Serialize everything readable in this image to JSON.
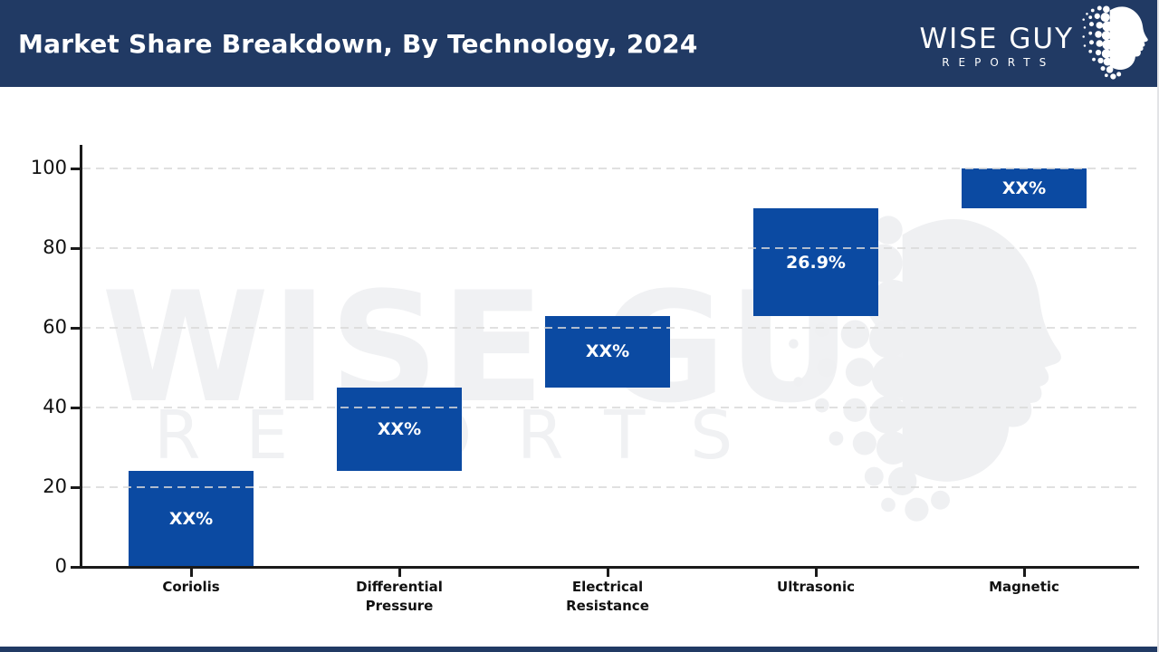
{
  "header": {
    "logo": {
      "wordmark": "WISE GUY",
      "subtext": "REPORTS"
    }
  },
  "watermark": {
    "wordmark": "WISE GUY",
    "subtext": "REPORTS"
  },
  "colors": {
    "header_bg": "#213a64",
    "footer_bg": "#213a64",
    "bar": "#0b4aa2",
    "bar_label": "#ffffff",
    "grid": "#d9d9d9",
    "axis": "#1a1a1a",
    "watermark": "#f0f1f3"
  },
  "chart_data": {
    "type": "bar",
    "subtype": "floating-waterfall",
    "title": "Market Share Breakdown, By Technology, 2024",
    "categories": [
      "Coriolis",
      "Differential Pressure",
      "Electrical Resistance",
      "Ultrasonic",
      "Magnetic"
    ],
    "segments": [
      {
        "category": "Coriolis",
        "start": 0,
        "end": 24,
        "label": "XX%"
      },
      {
        "category": "Differential Pressure",
        "start": 24,
        "end": 45,
        "label": "XX%"
      },
      {
        "category": "Electrical Resistance",
        "start": 45,
        "end": 63,
        "label": "XX%"
      },
      {
        "category": "Ultrasonic",
        "start": 63,
        "end": 89.9,
        "label": "26.9%"
      },
      {
        "category": "Magnetic",
        "start": 89.9,
        "end": 100,
        "label": "XX%"
      }
    ],
    "y_ticks": [
      0,
      20,
      40,
      60,
      80,
      100
    ],
    "ylim": [
      0,
      100
    ],
    "xlabel": "",
    "ylabel": "",
    "grid": "horizontal-dashed",
    "legend": "none"
  }
}
